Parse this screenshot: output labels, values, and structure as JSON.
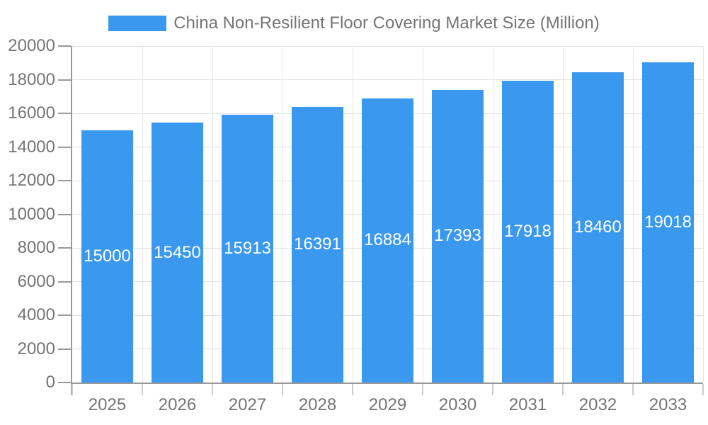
{
  "chart_data": {
    "type": "bar",
    "title": "China Non-Resilient Floor Covering Market Size (Million)",
    "categories": [
      "2025",
      "2026",
      "2027",
      "2028",
      "2029",
      "2030",
      "2031",
      "2032",
      "2033"
    ],
    "values": [
      15000,
      15450,
      15913,
      16391,
      16884,
      17393,
      17918,
      18460,
      19018
    ],
    "value_labels": [
      "15000",
      "15450",
      "15913",
      "16391",
      "16884",
      "17393",
      "17918",
      "18460",
      "19018"
    ],
    "xlabel": "",
    "ylabel": "",
    "ylim": [
      0,
      20000
    ],
    "ytick_step": 2000,
    "grid": true,
    "legend_position": "top",
    "colors": {
      "bar": "#3A99EE",
      "grid_h": "#E0E0E0",
      "grid_v": "#E7E7E7",
      "axis": "#999999",
      "tick_major": "#999999",
      "tick_minor": "#CCCCCC",
      "text": "#757575",
      "value_text": "#FFFFFF",
      "background": "#FFFFFF"
    }
  }
}
